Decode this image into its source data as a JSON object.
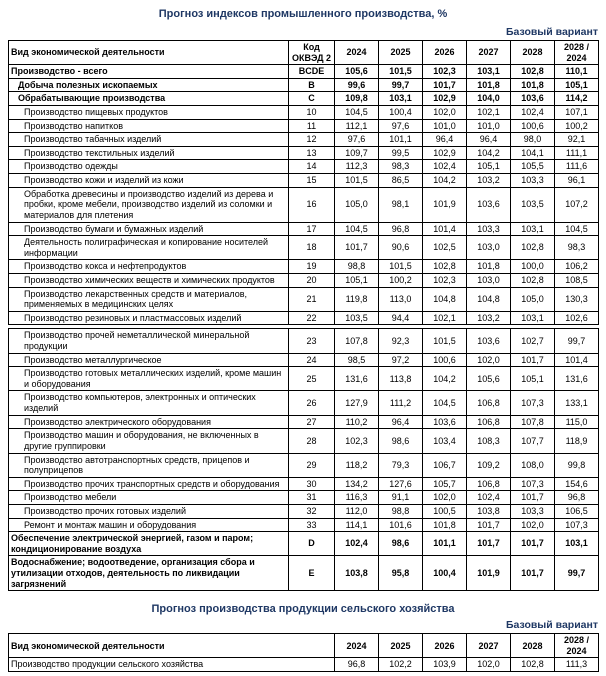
{
  "colors": {
    "accent": "#1f3864"
  },
  "industrial": {
    "title": "Прогноз индексов промышленного производства, %",
    "variant_label": "Базовый вариант",
    "headers": {
      "activity": "Вид экономической деятельности",
      "code": "Код ОКВЭД 2",
      "years": [
        "2024",
        "2025",
        "2026",
        "2027",
        "2028"
      ],
      "ratio": "2028 / 2024"
    },
    "rows": [
      {
        "name": "Производство - всего",
        "code": "BCDE",
        "values": [
          "105,6",
          "101,5",
          "102,3",
          "103,1",
          "102,8",
          "110,1"
        ],
        "bold": true,
        "indent": 0,
        "segment": 1
      },
      {
        "name": "Добыча полезных ископаемых",
        "code": "B",
        "values": [
          "99,6",
          "99,7",
          "101,7",
          "101,8",
          "101,8",
          "105,1"
        ],
        "bold": true,
        "indent": 1,
        "segment": 1
      },
      {
        "name": "Обрабатывающие производства",
        "code": "C",
        "values": [
          "109,8",
          "103,1",
          "102,9",
          "104,0",
          "103,6",
          "114,2"
        ],
        "bold": true,
        "indent": 1,
        "segment": 1
      },
      {
        "name": "Производство пищевых продуктов",
        "code": "10",
        "values": [
          "104,5",
          "100,4",
          "102,0",
          "102,1",
          "102,4",
          "107,1"
        ],
        "bold": false,
        "indent": 2,
        "segment": 1
      },
      {
        "name": "Производство напитков",
        "code": "11",
        "values": [
          "112,1",
          "97,6",
          "101,0",
          "101,0",
          "100,6",
          "100,2"
        ],
        "bold": false,
        "indent": 2,
        "segment": 1
      },
      {
        "name": "Производство табачных изделий",
        "code": "12",
        "values": [
          "97,6",
          "101,1",
          "96,4",
          "96,4",
          "98,0",
          "92,1"
        ],
        "bold": false,
        "indent": 2,
        "segment": 1
      },
      {
        "name": "Производство текстильных изделий",
        "code": "13",
        "values": [
          "109,7",
          "99,5",
          "102,9",
          "104,2",
          "104,1",
          "111,1"
        ],
        "bold": false,
        "indent": 2,
        "segment": 1
      },
      {
        "name": "Производство одежды",
        "code": "14",
        "values": [
          "112,3",
          "98,3",
          "102,4",
          "105,1",
          "105,5",
          "111,6"
        ],
        "bold": false,
        "indent": 2,
        "segment": 1
      },
      {
        "name": "Производство кожи и изделий из кожи",
        "code": "15",
        "values": [
          "101,5",
          "86,5",
          "104,2",
          "103,2",
          "103,3",
          "96,1"
        ],
        "bold": false,
        "indent": 2,
        "segment": 1
      },
      {
        "name": "Обработка древесины и производство изделий из дерева и пробки, кроме мебели, производство изделий из соломки и материалов для плетения",
        "code": "16",
        "values": [
          "105,0",
          "98,1",
          "101,9",
          "103,6",
          "103,5",
          "107,2"
        ],
        "bold": false,
        "indent": 2,
        "segment": 1
      },
      {
        "name": "Производство бумаги и бумажных изделий",
        "code": "17",
        "values": [
          "104,5",
          "96,8",
          "101,4",
          "103,3",
          "103,1",
          "104,5"
        ],
        "bold": false,
        "indent": 2,
        "segment": 1
      },
      {
        "name": "Деятельность полиграфическая и копирование носителей информации",
        "code": "18",
        "values": [
          "101,7",
          "90,6",
          "102,5",
          "103,0",
          "102,8",
          "98,3"
        ],
        "bold": false,
        "indent": 2,
        "segment": 1
      },
      {
        "name": "Производство кокса и нефтепродуктов",
        "code": "19",
        "values": [
          "98,8",
          "101,5",
          "102,8",
          "101,8",
          "100,0",
          "106,2"
        ],
        "bold": false,
        "indent": 2,
        "segment": 1
      },
      {
        "name": "Производство химических веществ и химических продуктов",
        "code": "20",
        "values": [
          "105,1",
          "100,2",
          "102,3",
          "103,0",
          "102,8",
          "108,5"
        ],
        "bold": false,
        "indent": 2,
        "segment": 1
      },
      {
        "name": "Производство лекарственных средств и материалов, применяемых в медицинских целях",
        "code": "21",
        "values": [
          "119,8",
          "113,0",
          "104,8",
          "104,8",
          "105,0",
          "130,3"
        ],
        "bold": false,
        "indent": 2,
        "segment": 1
      },
      {
        "name": "Производство резиновых и пластмассовых изделий",
        "code": "22",
        "values": [
          "103,5",
          "94,4",
          "102,1",
          "103,2",
          "103,1",
          "102,6"
        ],
        "bold": false,
        "indent": 2,
        "segment": 1
      },
      {
        "name": "Производство прочей неметаллической минеральной продукции",
        "code": "23",
        "values": [
          "107,8",
          "92,3",
          "101,5",
          "103,6",
          "102,7",
          "99,7"
        ],
        "bold": false,
        "indent": 2,
        "segment": 2
      },
      {
        "name": "Производство металлургическое",
        "code": "24",
        "values": [
          "98,5",
          "97,2",
          "100,6",
          "102,0",
          "101,7",
          "101,4"
        ],
        "bold": false,
        "indent": 2,
        "segment": 2
      },
      {
        "name": "Производство готовых металлических изделий, кроме машин и оборудования",
        "code": "25",
        "values": [
          "131,6",
          "113,8",
          "104,2",
          "105,6",
          "105,1",
          "131,6"
        ],
        "bold": false,
        "indent": 2,
        "segment": 2
      },
      {
        "name": "Производство компьютеров, электронных и оптических изделий",
        "code": "26",
        "values": [
          "127,9",
          "111,2",
          "104,5",
          "106,8",
          "107,3",
          "133,1"
        ],
        "bold": false,
        "indent": 2,
        "segment": 2
      },
      {
        "name": "Производство электрического оборудования",
        "code": "27",
        "values": [
          "110,2",
          "96,4",
          "103,6",
          "106,8",
          "107,8",
          "115,0"
        ],
        "bold": false,
        "indent": 2,
        "segment": 2
      },
      {
        "name": "Производство машин и оборудования, не включенных в другие группировки",
        "code": "28",
        "values": [
          "102,3",
          "98,6",
          "103,4",
          "108,3",
          "107,7",
          "118,9"
        ],
        "bold": false,
        "indent": 2,
        "segment": 2
      },
      {
        "name": "Производство автотранспортных средств, прицепов и полуприцепов",
        "code": "29",
        "values": [
          "118,2",
          "79,3",
          "106,7",
          "109,2",
          "108,0",
          "99,8"
        ],
        "bold": false,
        "indent": 2,
        "segment": 2
      },
      {
        "name": "Производство прочих транспортных средств и оборудования",
        "code": "30",
        "values": [
          "134,2",
          "127,6",
          "105,7",
          "106,8",
          "107,3",
          "154,6"
        ],
        "bold": false,
        "indent": 2,
        "segment": 2
      },
      {
        "name": "Производство мебели",
        "code": "31",
        "values": [
          "116,3",
          "91,1",
          "102,0",
          "102,4",
          "101,7",
          "96,8"
        ],
        "bold": false,
        "indent": 2,
        "segment": 2
      },
      {
        "name": "Производство прочих готовых изделий",
        "code": "32",
        "values": [
          "112,0",
          "98,8",
          "100,5",
          "103,8",
          "103,3",
          "106,5"
        ],
        "bold": false,
        "indent": 2,
        "segment": 2
      },
      {
        "name": "Ремонт и монтаж машин и оборудования",
        "code": "33",
        "values": [
          "114,1",
          "101,6",
          "101,8",
          "101,7",
          "102,0",
          "107,3"
        ],
        "bold": false,
        "indent": 2,
        "segment": 2
      },
      {
        "name": "Обеспечение электрической энергией, газом и паром; кондиционирование воздуха",
        "code": "D",
        "values": [
          "102,4",
          "98,6",
          "101,1",
          "101,7",
          "101,7",
          "103,1"
        ],
        "bold": true,
        "indent": 0,
        "segment": 2
      },
      {
        "name": "Водоснабжение; водоотведение, организация сбора и утилизации отходов, деятельность по ликвидации загрязнений",
        "code": "E",
        "values": [
          "103,8",
          "95,8",
          "100,4",
          "101,9",
          "101,7",
          "99,7"
        ],
        "bold": true,
        "indent": 0,
        "segment": 2
      }
    ]
  },
  "agriculture": {
    "title": "Прогноз производства продукции сельского хозяйства",
    "variant_label": "Базовый вариант",
    "headers": {
      "activity": "Вид экономической деятельности",
      "years": [
        "2024",
        "2025",
        "2026",
        "2027",
        "2028"
      ],
      "ratio": "2028 / 2024"
    },
    "rows": [
      {
        "name": "Производство продукции сельского хозяйства",
        "code": null,
        "values": [
          "96,8",
          "102,2",
          "103,9",
          "102,0",
          "102,8",
          "111,3"
        ],
        "bold": false,
        "indent": 0,
        "segment": 1
      }
    ]
  }
}
